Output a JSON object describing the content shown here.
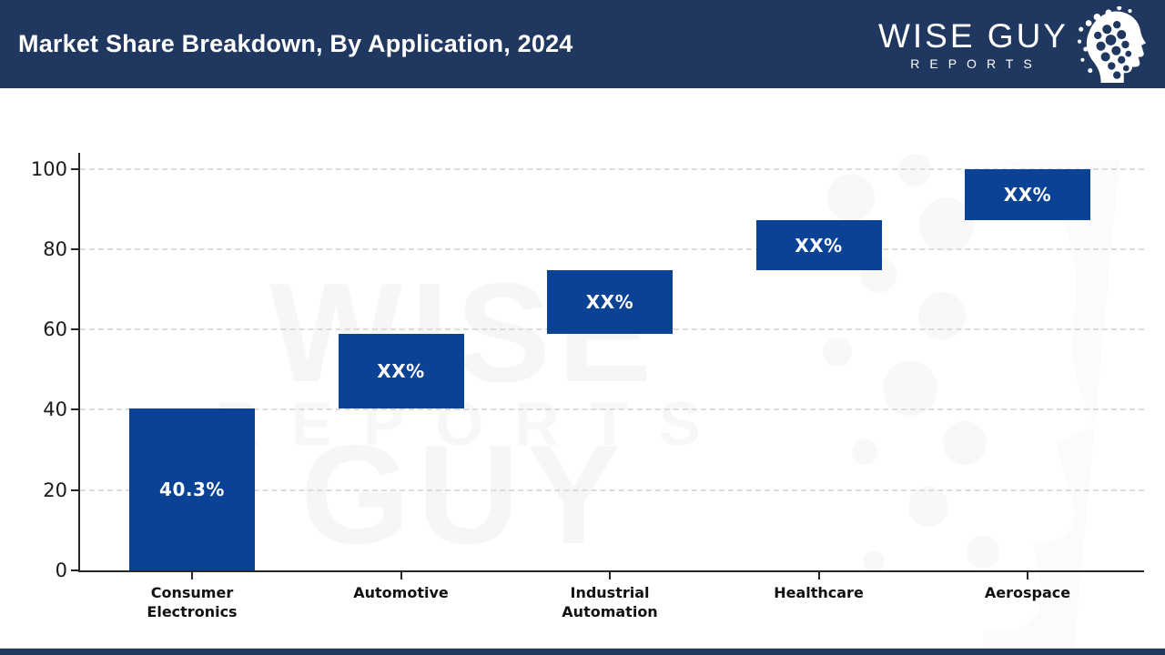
{
  "header": {
    "title": "Market Share Breakdown, By Application, 2024",
    "logo": {
      "line1": "WISE GUY",
      "line2": "REPORTS"
    }
  },
  "watermark": {
    "line1": "WISE GUY",
    "line2": "REPORTS"
  },
  "footer": {},
  "chart_data": {
    "type": "bar",
    "subtype": "waterfall",
    "title": "Market Share Breakdown, By Application, 2024",
    "categories": [
      "Consumer\nElectronics",
      "Automotive",
      "Industrial\nAutomation",
      "Healthcare",
      "Aerospace"
    ],
    "segments": [
      {
        "category": "Consumer Electronics",
        "start": 0,
        "end": 40.3,
        "label": "40.3%"
      },
      {
        "category": "Automotive",
        "start": 40.3,
        "end": 59.0,
        "label": "XX%"
      },
      {
        "category": "Industrial Automation",
        "start": 59.0,
        "end": 74.7,
        "label": "XX%"
      },
      {
        "category": "Healthcare",
        "start": 74.7,
        "end": 87.2,
        "label": "XX%"
      },
      {
        "category": "Aerospace",
        "start": 87.2,
        "end": 100.0,
        "label": "XX%"
      }
    ],
    "xlabel": "",
    "ylabel": "",
    "yticks": [
      0,
      20,
      40,
      60,
      80,
      100
    ],
    "ylim": [
      0,
      104
    ],
    "grid": "horizontal-dashed",
    "legend": null,
    "colors": {
      "bar": "#0a4296",
      "axis": "#262626",
      "grid": "#dcdcdc",
      "header_bg": "#20375f",
      "bar_label_text": "#ffffff",
      "tick_text": "#1a1a1a"
    }
  }
}
